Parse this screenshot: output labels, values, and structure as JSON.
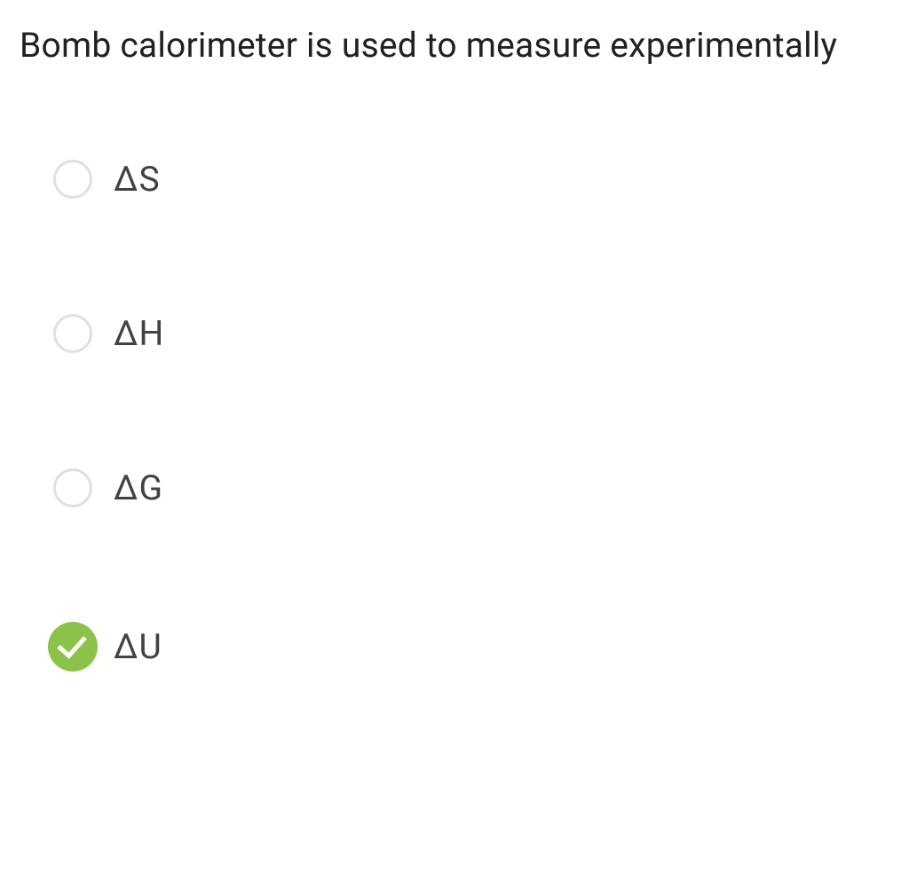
{
  "question": {
    "text": "Bomb calorimeter is used to measure experimentally",
    "text_color": "#212121",
    "font_size": 39
  },
  "options": [
    {
      "label": "ΔS",
      "selected": false
    },
    {
      "label": "ΔH",
      "selected": false
    },
    {
      "label": "ΔG",
      "selected": false
    },
    {
      "label": "ΔU",
      "selected": true
    }
  ],
  "styling": {
    "background_color": "#ffffff",
    "radio_unselected_border": "#e0e0e0",
    "radio_selected_bg": "#8bc34a",
    "checkmark_color": "#ffffff",
    "option_text_color": "#424242",
    "option_font_size": 39
  }
}
